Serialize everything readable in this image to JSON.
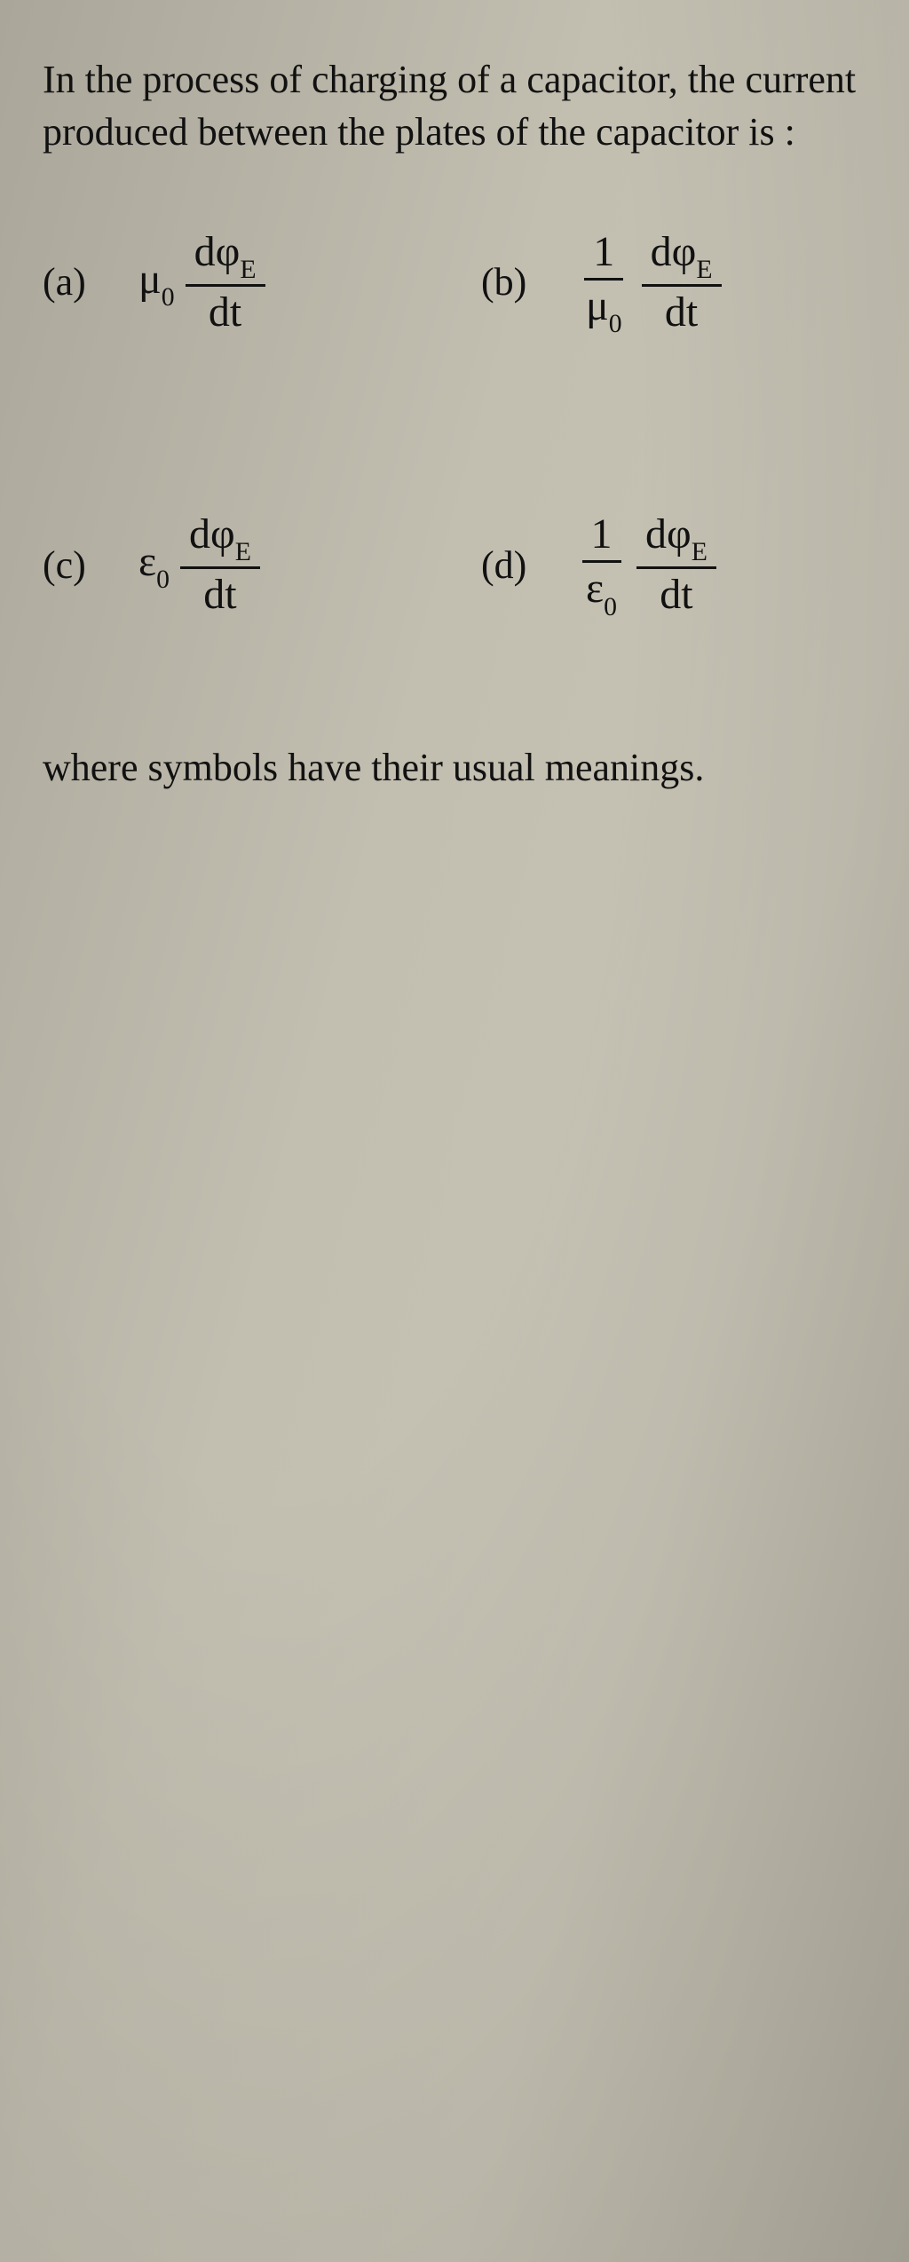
{
  "question": {
    "intro": "In the process of charging of a capacitor, the current produced between the plates of the capacitor is :",
    "closing": "where symbols have their usual meanings."
  },
  "options": {
    "a": {
      "label": "(a)"
    },
    "b": {
      "label": "(b)"
    },
    "c": {
      "label": "(c)"
    },
    "d": {
      "label": "(d)"
    }
  },
  "symbols": {
    "mu0": "μ",
    "eps0": "ε",
    "zero": "0",
    "one": "1",
    "dphi": "dφ",
    "E": "E",
    "dt": "dt"
  }
}
